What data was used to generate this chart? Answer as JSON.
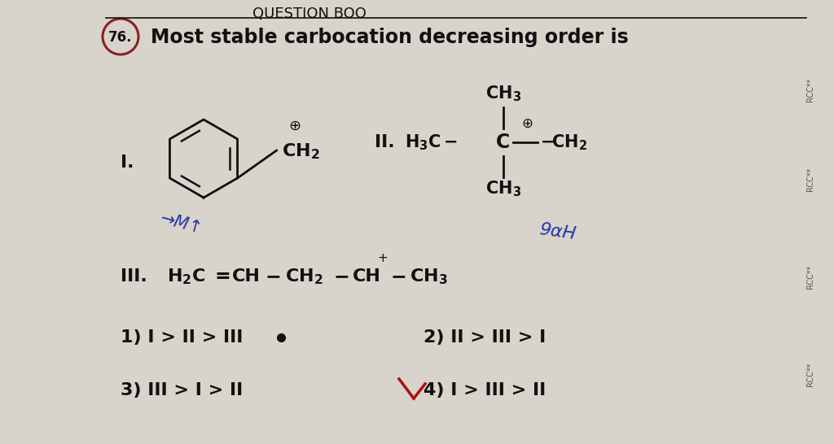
{
  "bg_color": "#d8d4cc",
  "text_color": "#111111",
  "circle_color": "#8b2020",
  "blue_color": "#2233aa",
  "red_color": "#aa1111",
  "font_size_title": 17,
  "font_size_body": 15,
  "font_size_chem": 14,
  "font_size_small": 11,
  "header": "QUESTION BOO",
  "question": "Most stable carbocation decreasing order is",
  "opt1": "1) I > II > III",
  "opt2": "2) II > III > I",
  "opt3": "3) III > I > II",
  "opt4": "4) I > III > II"
}
